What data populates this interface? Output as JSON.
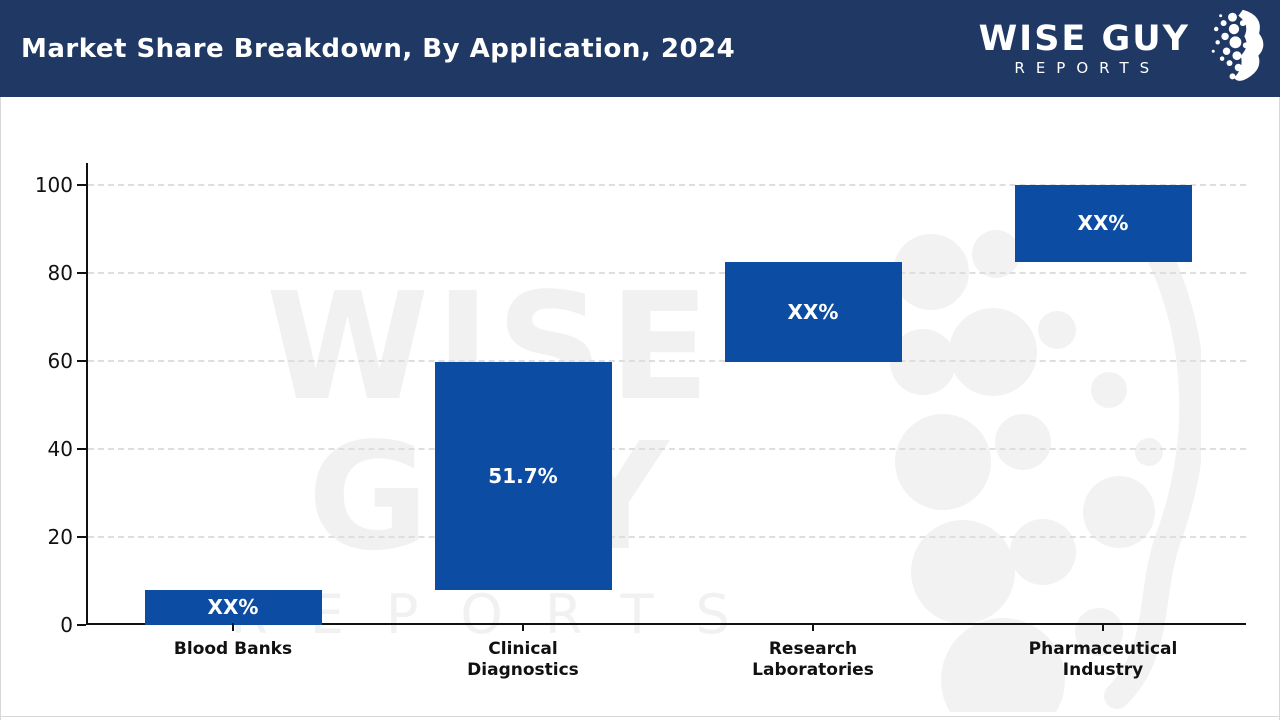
{
  "header": {
    "title": "Market Share Breakdown, By Application, 2024",
    "bg_color": "#1f3864",
    "logo": {
      "line1": "WISE GUY",
      "line2": "REPORTS"
    }
  },
  "watermark": {
    "line1": "WISE GUY",
    "line2": "REPORTS"
  },
  "chart_data": {
    "type": "bar",
    "subtype": "waterfall",
    "title": "Market Share Breakdown, By Application, 2024",
    "xlabel": "",
    "ylabel": "",
    "categories": [
      [
        "Blood Banks"
      ],
      [
        "Clinical",
        "Diagnostics"
      ],
      [
        "Research",
        "Laboratories"
      ],
      [
        "Pharmaceutical",
        "Industry"
      ]
    ],
    "segments": [
      {
        "category": "Blood Banks",
        "start": 0,
        "end": 8.0,
        "value_label": "XX%"
      },
      {
        "category": "Clinical Diagnostics",
        "start": 8.0,
        "end": 59.7,
        "value_label": "51.7%"
      },
      {
        "category": "Research Laboratories",
        "start": 59.7,
        "end": 82.6,
        "value_label": "XX%"
      },
      {
        "category": "Pharmaceutical Industry",
        "start": 82.6,
        "end": 100,
        "value_label": "XX%"
      }
    ],
    "yticks": [
      0,
      20,
      40,
      60,
      80,
      100
    ],
    "ylim": [
      0,
      105
    ],
    "grid": "horizontal-dashed",
    "legend": "none",
    "bar_color": "#0c4ca3",
    "grid_color": "#dedede",
    "axis_color": "#111111",
    "watermark_color": "#f1f1f1"
  }
}
